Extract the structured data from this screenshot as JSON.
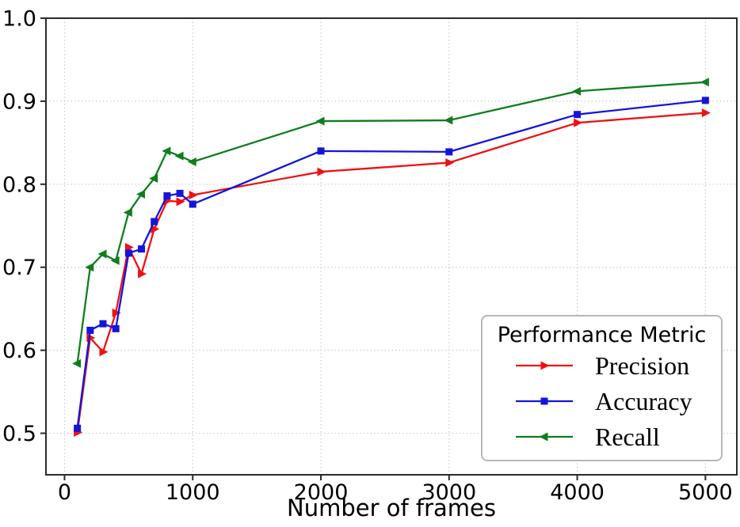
{
  "chart_data": {
    "type": "line",
    "title": "",
    "xlabel": "Number of frames",
    "ylabel": "",
    "x": [
      100,
      200,
      300,
      400,
      500,
      600,
      700,
      800,
      900,
      1000,
      2000,
      3000,
      4000,
      5000
    ],
    "series": [
      {
        "name": "Precision",
        "color": "#ee1111",
        "marker": "triangle-right",
        "values": [
          0.501,
          0.615,
          0.598,
          0.645,
          0.724,
          0.692,
          0.746,
          0.78,
          0.779,
          0.787,
          0.815,
          0.826,
          0.874,
          0.886
        ]
      },
      {
        "name": "Accuracy",
        "color": "#1414dd",
        "marker": "square",
        "values": [
          0.506,
          0.624,
          0.632,
          0.626,
          0.717,
          0.722,
          0.755,
          0.786,
          0.789,
          0.776,
          0.84,
          0.839,
          0.884,
          0.901
        ]
      },
      {
        "name": "Recall",
        "color": "#0f7d1e",
        "marker": "triangle-left",
        "values": [
          0.584,
          0.7,
          0.716,
          0.708,
          0.766,
          0.788,
          0.807,
          0.84,
          0.834,
          0.827,
          0.876,
          0.877,
          0.912,
          0.923
        ]
      }
    ],
    "x_tick_values": [
      0,
      1000,
      2000,
      3000,
      4000,
      5000
    ],
    "x_tick_labels": [
      "0",
      "1000",
      "2000",
      "3000",
      "4000",
      "5000"
    ],
    "y_tick_values": [
      0.5,
      0.6,
      0.7,
      0.8,
      0.9,
      1.0
    ],
    "y_tick_labels": [
      "0.5",
      "0.6",
      "0.7",
      "0.8",
      "0.9",
      "1.0"
    ],
    "xlim": [
      -145,
      5245
    ],
    "ylim": [
      0.45,
      1.0
    ],
    "grid": "dotted",
    "grid_color": "#cccccc",
    "spine_color": "#2b2b2b",
    "legend": {
      "title": "Performance Metric",
      "position": "lower right"
    }
  }
}
